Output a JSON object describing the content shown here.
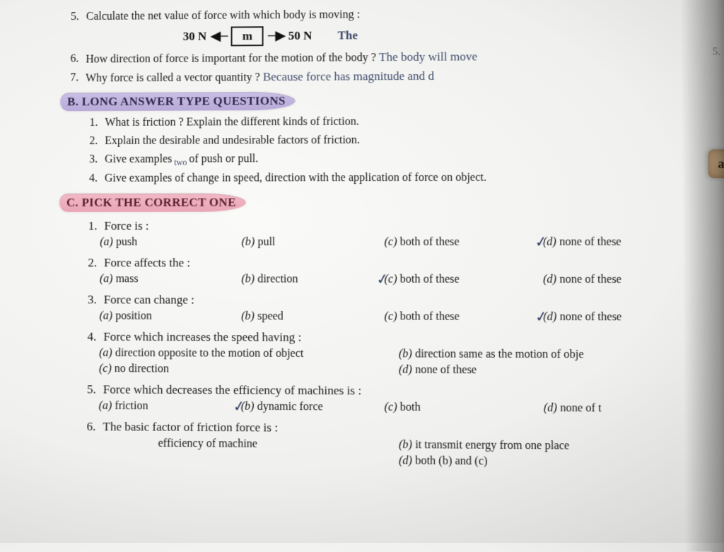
{
  "upper": {
    "q5": {
      "num": "5.",
      "text": "Calculate the net value of force with which body is moving :"
    },
    "diagram": {
      "left_force": "30 N",
      "mass_label": "m",
      "right_force": "50 N",
      "the_hand": "The"
    },
    "q6": {
      "num": "6.",
      "text": "How direction of force is important for the motion of the body ?",
      "hand": "The body will move"
    },
    "q7": {
      "num": "7.",
      "text": "Why force is called a vector quantity ?",
      "hand": "Because force has magnitude and d"
    }
  },
  "sectionB": {
    "head": "B.  LONG ANSWER TYPE QUESTIONS",
    "items": [
      {
        "num": "1.",
        "text": "What is friction ? Explain the different kinds of friction."
      },
      {
        "num": "2.",
        "text": "Explain the desirable and undesirable factors of friction."
      },
      {
        "num": "3.",
        "text": "Give examples of push or pull.",
        "ins": "two"
      },
      {
        "num": "4.",
        "text": "Give examples of change in speed, direction with the application of force on object."
      }
    ],
    "margin_tab": "a."
  },
  "sectionC": {
    "head": "C.  PICK THE CORRECT ONE",
    "questions": [
      {
        "num": "1.",
        "text": "Force is :",
        "opts": [
          {
            "k": "(a)",
            "v": "push"
          },
          {
            "k": "(b)",
            "v": "pull"
          },
          {
            "k": "(c)",
            "v": "both of these",
            "tick": true
          },
          {
            "k": "(d)",
            "v": "none of these"
          }
        ]
      },
      {
        "num": "2.",
        "text": "Force affects the :",
        "opts": [
          {
            "k": "(a)",
            "v": "mass"
          },
          {
            "k": "(b)",
            "v": "direction",
            "tick": true
          },
          {
            "k": "(c)",
            "v": "both of these"
          },
          {
            "k": "(d)",
            "v": "none of these"
          }
        ]
      },
      {
        "num": "3.",
        "text": "Force can change :",
        "opts": [
          {
            "k": "(a)",
            "v": "position"
          },
          {
            "k": "(b)",
            "v": "speed"
          },
          {
            "k": "(c)",
            "v": "both of these",
            "tick": true
          },
          {
            "k": "(d)",
            "v": "none of these"
          }
        ]
      },
      {
        "num": "4.",
        "text": "Force which increases the speed having :",
        "layout": "two-two",
        "opts": [
          {
            "k": "(a)",
            "v": "direction opposite to the motion of object"
          },
          {
            "k": "(b)",
            "v": "direction same as the motion of obje"
          },
          {
            "k": "(c)",
            "v": "no direction"
          },
          {
            "k": "(d)",
            "v": "none of these"
          }
        ]
      },
      {
        "num": "5.",
        "text": "Force which decreases the efficiency of machines is :",
        "opts": [
          {
            "k": "(a)",
            "v": "friction",
            "tick": true
          },
          {
            "k": "(b)",
            "v": "dynamic force"
          },
          {
            "k": "(c)",
            "v": "both"
          },
          {
            "k": "(d)",
            "v": "none of t"
          }
        ]
      },
      {
        "num": "6.",
        "text": "The basic factor of friction force is :",
        "layout": "two-two",
        "opts": [
          {
            "k": "",
            "v": "efficiency of machine",
            "pad": true
          },
          {
            "k": "(b)",
            "v": "it transmit energy from one place"
          },
          {
            "k": "",
            "v": ""
          },
          {
            "k": "(d)",
            "v": "both (b) and (c)"
          }
        ]
      }
    ]
  },
  "corner_num": "5."
}
